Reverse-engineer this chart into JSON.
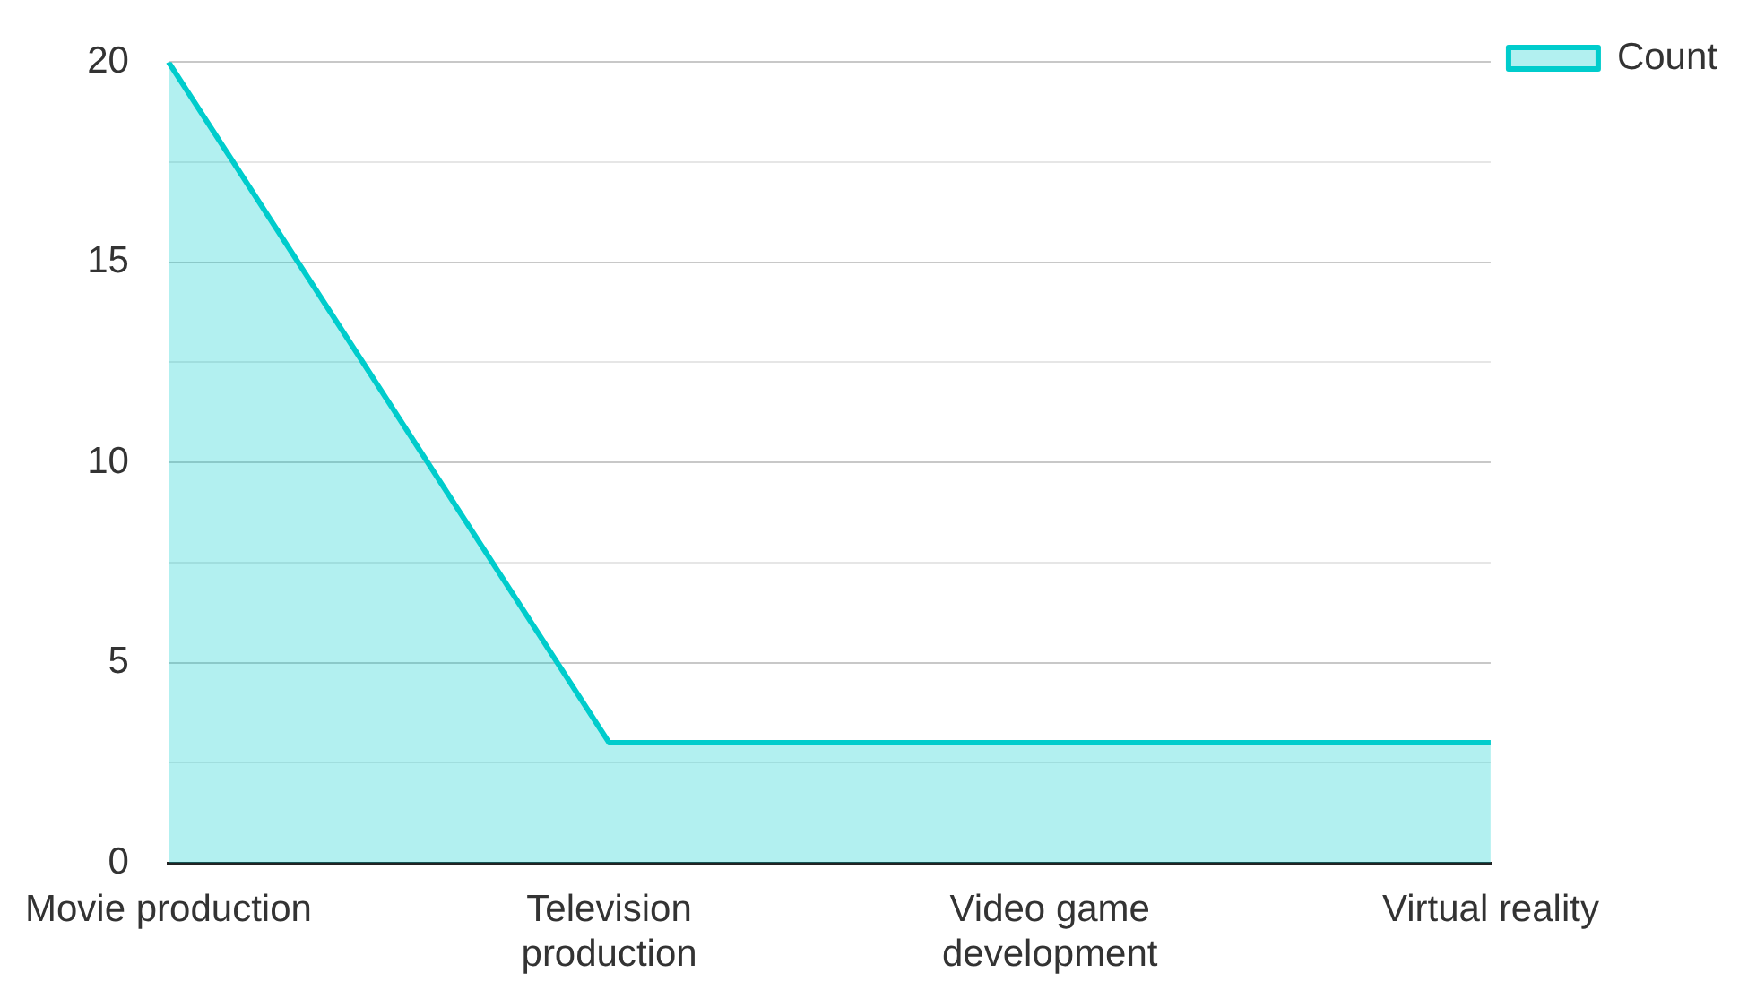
{
  "chart_data": {
    "type": "area",
    "categories": [
      "Movie production",
      "Television production",
      "Video game development",
      "Virtual reality"
    ],
    "series": [
      {
        "name": "Count",
        "color": "#00cccc",
        "values": [
          20,
          3,
          3,
          3
        ]
      }
    ],
    "ylim": [
      0,
      20
    ],
    "yticks": [
      0,
      {
        "value": 2.5,
        "label": null
      },
      5,
      {
        "value": 7.5,
        "label": null
      },
      10,
      {
        "value": 12.5,
        "label": null
      },
      15,
      {
        "value": 17.5,
        "label": null
      },
      20
    ],
    "grid": "y",
    "legend": "top right",
    "marker": "none"
  }
}
